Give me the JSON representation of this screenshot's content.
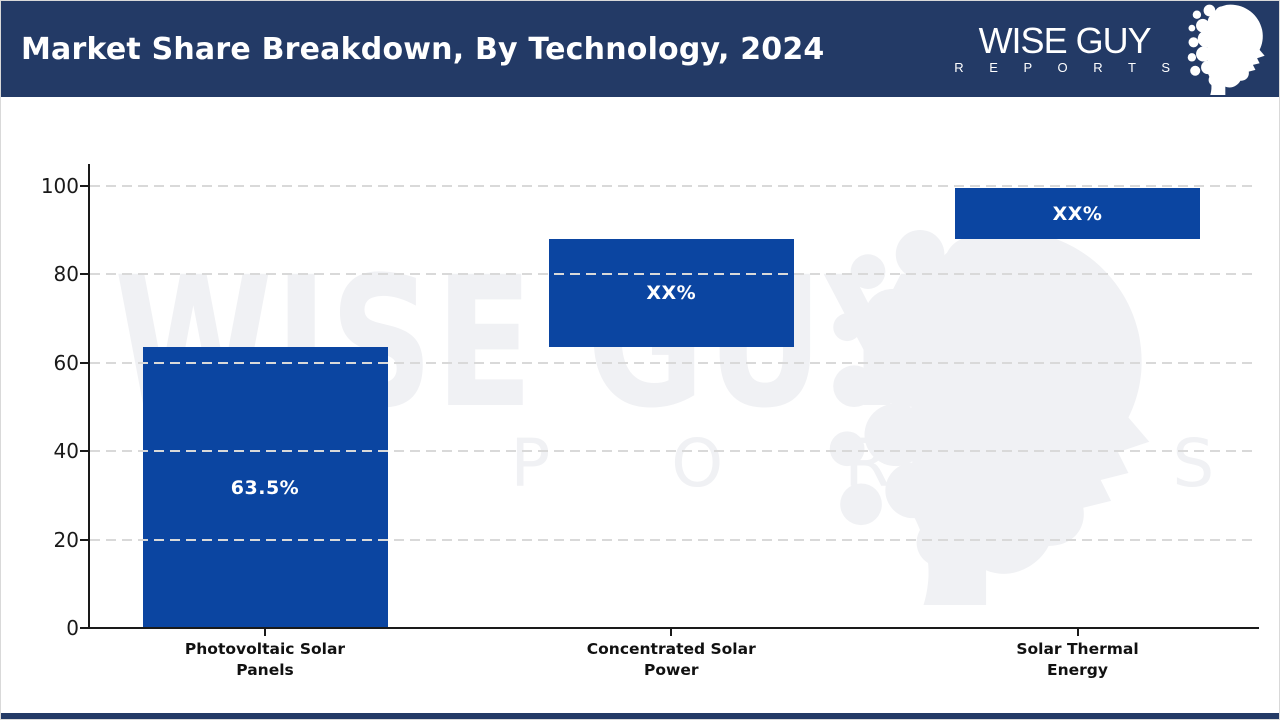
{
  "header": {
    "title": "Market Share Breakdown, By Technology, 2024",
    "logo": {
      "name": "WISE GUY",
      "sub": "R E P O R T S"
    }
  },
  "watermark": {
    "name": "WISE GUY",
    "sub": "R E P O R T S"
  },
  "colors": {
    "header_bg": "#233a66",
    "bar": "#0b45a1",
    "grid": "#d9d9d9",
    "axis": "#1a1a1a",
    "bar_label": "#ffffff",
    "watermark": "#f0f1f4"
  },
  "chart_data": {
    "type": "bar",
    "subtype": "stacked-waterfall",
    "title": "Market Share Breakdown, By Technology, 2024",
    "categories": [
      "Photovoltaic Solar Panels",
      "Concentrated Solar Power",
      "Solar Thermal Energy"
    ],
    "category_lines": [
      [
        "Photovoltaic Solar",
        "Panels"
      ],
      [
        "Concentrated Solar",
        "Power"
      ],
      [
        "Solar Thermal",
        "Energy"
      ]
    ],
    "bar_ranges": [
      [
        0,
        63.5
      ],
      [
        63.5,
        88
      ],
      [
        88,
        99.5
      ]
    ],
    "segment_values": [
      63.5,
      24.5,
      11.5
    ],
    "bar_labels": [
      "63.5%",
      "XX%",
      "XX%"
    ],
    "xlabel": "",
    "ylabel": "",
    "ylim": [
      0,
      105
    ],
    "yticks": [
      0,
      20,
      40,
      60,
      80,
      100
    ],
    "grid": "horizontal-dashed",
    "legend": "none",
    "bar_color": "#0b45a1"
  }
}
